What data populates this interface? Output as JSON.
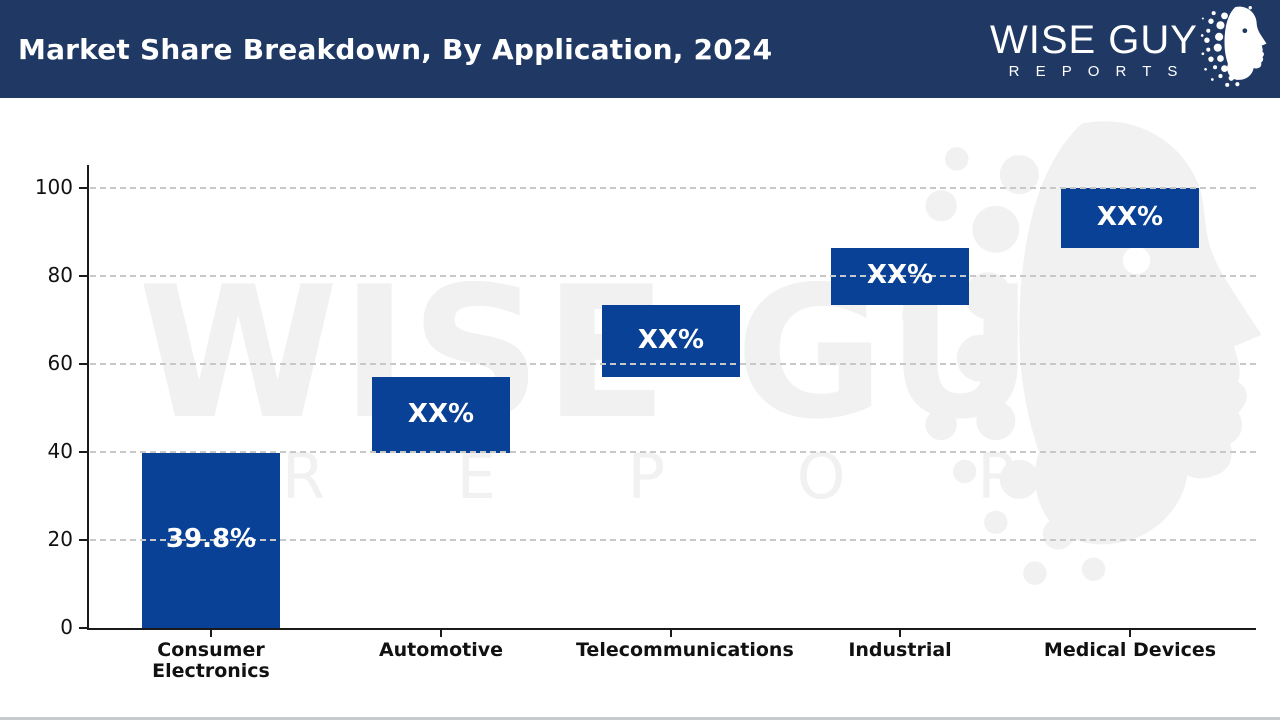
{
  "header": {
    "title": "Market Share Breakdown, By Application, 2024",
    "logo": {
      "wordmark": "WISE GUY",
      "subtext": "R E P O R T S"
    }
  },
  "watermark": {
    "line1": "WISE GUY",
    "line2": "R E P O R T S"
  },
  "icons": {
    "logo_face": "wiseguy-dotted-face-profile",
    "watermark_face": "wiseguy-dotted-face-profile"
  },
  "colors": {
    "header_bg": "#1f3864",
    "bar": "#084195",
    "bar_label": "#ffffff",
    "grid": "#c8c8c8",
    "axis": "#1a1a1a",
    "tick_text": "#111111",
    "watermark": "#f1f1f1",
    "title_text": "#ffffff"
  },
  "chart_data": {
    "type": "bar",
    "variant": "waterfall",
    "title": "Market Share Breakdown, By Application, 2024",
    "categories": [
      "Consumer Electronics",
      "Automotive",
      "Telecommunications",
      "Industrial",
      "Medical Devices"
    ],
    "segments": [
      {
        "category": "Consumer Electronics",
        "start": 0,
        "end": 39.8,
        "label": "39.8%"
      },
      {
        "category": "Automotive",
        "start": 39.8,
        "end": 57.0,
        "label": "XX%"
      },
      {
        "category": "Telecommunications",
        "start": 57.0,
        "end": 73.4,
        "label": "XX%"
      },
      {
        "category": "Industrial",
        "start": 73.4,
        "end": 86.4,
        "label": "XX%"
      },
      {
        "category": "Medical Devices",
        "start": 86.4,
        "end": 100,
        "label": "XX%"
      }
    ],
    "ylim": [
      0,
      105
    ],
    "yticks": [
      0,
      20,
      40,
      60,
      80,
      100
    ],
    "grid": "horizontal-dashed",
    "legend": false,
    "xlabel": "",
    "ylabel": ""
  }
}
